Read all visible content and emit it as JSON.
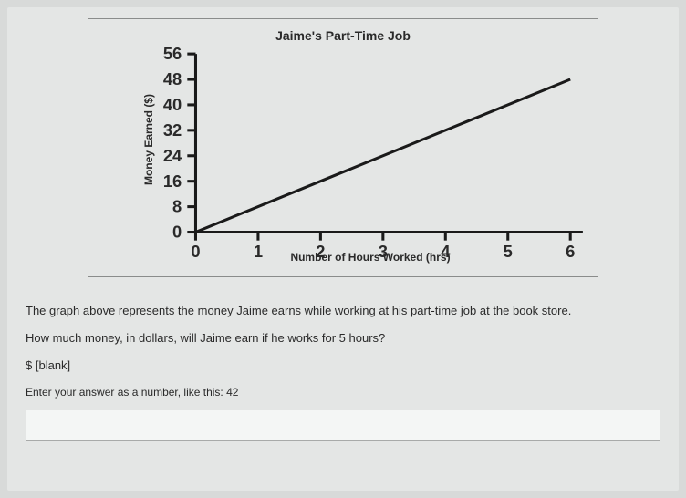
{
  "chart": {
    "type": "line",
    "title": "Jaime's Part-Time Job",
    "xlabel": "Number of Hours Worked (hrs)",
    "ylabel": "Money Earned ($)",
    "xlim": [
      0,
      6.2
    ],
    "ylim": [
      0,
      56
    ],
    "xticks": [
      0,
      1,
      2,
      3,
      4,
      5,
      6
    ],
    "yticks": [
      0,
      8,
      16,
      24,
      32,
      40,
      48,
      56
    ],
    "line_points": [
      [
        0,
        0
      ],
      [
        6,
        48
      ]
    ],
    "line_color": "#1a1a1a",
    "line_width": 2,
    "axis_color": "#1a1a1a",
    "axis_width": 2,
    "tick_length": 6,
    "tick_font_size": 12,
    "tick_font_weight": "bold",
    "label_font_size": 12,
    "label_font_weight": "bold",
    "title_font_size": 14,
    "title_font_weight": "bold",
    "background_color": "#e4e6e5",
    "border_color": "#8a8c8b",
    "text_color": "#2a2a2a"
  },
  "question": {
    "context": "The graph above represents the money Jaime earns while working at his part-time job at the book store.",
    "prompt": "How much money, in dollars, will Jaime earn if he works for 5 hours?",
    "dollar_prefix": "$",
    "blank_label": "[blank]",
    "hint": "Enter your answer as a number, like this: 42",
    "input_value": "",
    "input_placeholder": ""
  }
}
